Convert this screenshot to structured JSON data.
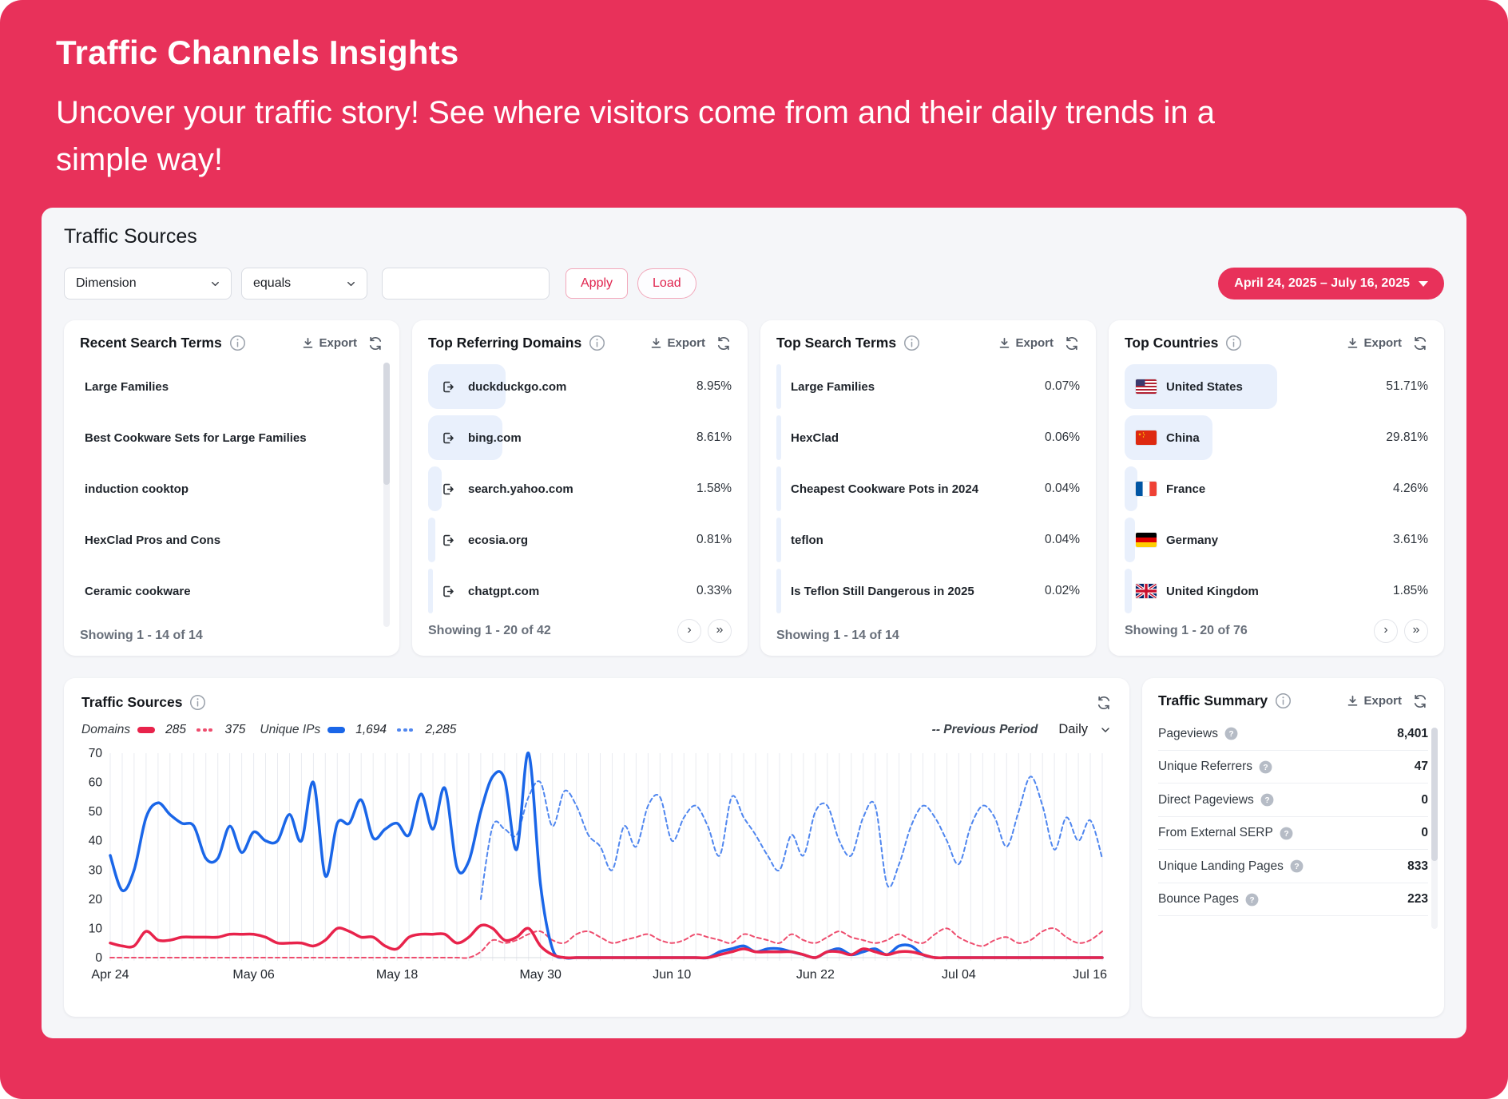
{
  "page": {
    "title": "Traffic Channels Insights",
    "subtitle": "Uncover your traffic story! See where visitors come from and their daily trends in a simple way!"
  },
  "card": {
    "title": "Traffic Sources"
  },
  "filters": {
    "dimension": "Dimension",
    "operator": "equals",
    "value": "",
    "apply": "Apply",
    "load": "Load",
    "date_range": "April 24, 2025 – July 16, 2025"
  },
  "panels": {
    "recent_search_terms": {
      "title": "Recent Search Terms",
      "export_label": "Export",
      "items": [
        "Large Families",
        "Best Cookware Sets for Large Families",
        "induction cooktop",
        "HexClad Pros and Cons",
        "Ceramic cookware"
      ],
      "footer": "Showing 1 - 14 of 14"
    },
    "top_referring_domains": {
      "title": "Top Referring Domains",
      "export_label": "Export",
      "items": [
        {
          "name": "duckduckgo.com",
          "pct": 8.95,
          "pct_label": "8.95%"
        },
        {
          "name": "bing.com",
          "pct": 8.61,
          "pct_label": "8.61%"
        },
        {
          "name": "search.yahoo.com",
          "pct": 1.58,
          "pct_label": "1.58%"
        },
        {
          "name": "ecosia.org",
          "pct": 0.81,
          "pct_label": "0.81%"
        },
        {
          "name": "chatgpt.com",
          "pct": 0.33,
          "pct_label": "0.33%"
        }
      ],
      "footer": "Showing 1 - 20 of 42",
      "pager_next": "›",
      "pager_last": "»"
    },
    "top_search_terms": {
      "title": "Top Search Terms",
      "export_label": "Export",
      "items": [
        {
          "name": "Large Families",
          "pct": 0.07,
          "pct_label": "0.07%"
        },
        {
          "name": "HexClad",
          "pct": 0.06,
          "pct_label": "0.06%"
        },
        {
          "name": "Cheapest Cookware Pots in 2024",
          "pct": 0.04,
          "pct_label": "0.04%"
        },
        {
          "name": "teflon",
          "pct": 0.04,
          "pct_label": "0.04%"
        },
        {
          "name": "Is Teflon Still Dangerous in 2025",
          "pct": 0.02,
          "pct_label": "0.02%"
        }
      ],
      "footer": "Showing 1 - 14 of 14"
    },
    "top_countries": {
      "title": "Top Countries",
      "export_label": "Export",
      "items": [
        {
          "name": "United States",
          "code": "us",
          "pct": 51.71,
          "pct_label": "51.71%"
        },
        {
          "name": "China",
          "code": "cn",
          "pct": 29.81,
          "pct_label": "29.81%"
        },
        {
          "name": "France",
          "code": "fr",
          "pct": 4.26,
          "pct_label": "4.26%"
        },
        {
          "name": "Germany",
          "code": "de",
          "pct": 3.61,
          "pct_label": "3.61%"
        },
        {
          "name": "United Kingdom",
          "code": "gb",
          "pct": 1.85,
          "pct_label": "1.85%"
        }
      ],
      "footer": "Showing 1 - 20 of 76",
      "pager_next": "›",
      "pager_last": "»"
    }
  },
  "chart_panel": {
    "title": "Traffic Sources",
    "legend": {
      "domains_label": "Domains",
      "domains_current": "285",
      "domains_previous": "375",
      "unique_ips_label": "Unique IPs",
      "unique_ips_current": "1,694",
      "unique_ips_previous": "2,285"
    },
    "previous_period_label": "-- Previous Period",
    "interval": "Daily"
  },
  "chart_data": {
    "type": "line",
    "title": "Traffic Sources",
    "xlabel": "",
    "ylabel": "",
    "ylim": [
      0,
      70
    ],
    "y_ticks": [
      0,
      10,
      20,
      30,
      40,
      50,
      60,
      70
    ],
    "grid": "vertical-daily-gridlines",
    "legend_position": "top-left",
    "days": 84,
    "x_ticks": [
      {
        "i": 0,
        "label": "Apr 24"
      },
      {
        "i": 12,
        "label": "May 06"
      },
      {
        "i": 24,
        "label": "May 18"
      },
      {
        "i": 36,
        "label": "May 30"
      },
      {
        "i": 47,
        "label": "Jun 10"
      },
      {
        "i": 59,
        "label": "Jun 22"
      },
      {
        "i": 71,
        "label": "Jul 04"
      },
      {
        "i": 83,
        "label": "Jul 16"
      }
    ],
    "series": [
      {
        "name": "Unique IPs (previous period)",
        "total_label": "2,285",
        "color": "#4f86ef",
        "style": "dashed",
        "width": 2,
        "values": [
          null,
          null,
          null,
          null,
          null,
          null,
          null,
          null,
          null,
          null,
          null,
          null,
          null,
          null,
          null,
          null,
          null,
          null,
          null,
          null,
          null,
          null,
          null,
          null,
          null,
          null,
          null,
          null,
          null,
          null,
          null,
          20,
          45,
          44,
          42,
          55,
          60,
          45,
          57,
          52,
          42,
          38,
          30,
          45,
          38,
          52,
          55,
          40,
          48,
          52,
          45,
          35,
          55,
          48,
          42,
          35,
          30,
          42,
          35,
          50,
          52,
          40,
          35,
          48,
          52,
          25,
          32,
          45,
          52,
          48,
          40,
          32,
          45,
          52,
          48,
          38,
          50,
          62,
          52,
          37,
          48,
          40,
          47,
          34
        ]
      },
      {
        "name": "Domains (previous period)",
        "total_label": "375",
        "color": "#ee4d6e",
        "style": "dashed",
        "width": 2,
        "values": [
          0,
          0,
          0,
          0,
          0,
          0,
          0,
          0,
          0,
          0,
          0,
          0,
          0,
          0,
          0,
          0,
          0,
          0,
          0,
          0,
          0,
          0,
          0,
          0,
          0,
          0,
          0,
          0,
          0,
          0,
          0,
          2,
          6,
          5,
          6,
          8,
          9,
          6,
          5,
          8,
          9,
          7,
          5,
          6,
          7,
          8,
          6,
          5,
          6,
          8,
          7,
          6,
          5,
          8,
          7,
          6,
          5,
          8,
          6,
          5,
          7,
          9,
          7,
          6,
          5,
          6,
          8,
          6,
          5,
          8,
          10,
          7,
          5,
          4,
          6,
          7,
          5,
          6,
          9,
          10,
          7,
          5,
          6,
          9
        ]
      },
      {
        "name": "Unique IPs",
        "total_label": "1,694",
        "color": "#1a66e8",
        "style": "solid",
        "width": 3.5,
        "values": [
          35,
          23,
          30,
          48,
          53,
          49,
          46,
          45,
          34,
          34,
          45,
          36,
          43,
          40,
          40,
          49,
          40,
          60,
          28,
          46,
          46,
          54,
          41,
          44,
          46,
          42,
          56,
          44,
          58,
          31,
          33,
          50,
          62,
          61,
          37,
          70,
          25,
          3,
          0,
          0,
          0,
          0,
          0,
          0,
          0,
          0,
          0,
          0,
          0,
          0,
          0,
          2,
          3,
          4,
          2,
          3,
          3,
          2,
          1,
          0,
          2,
          3,
          1,
          2,
          3,
          1,
          4,
          4,
          1,
          0,
          0,
          0,
          0,
          0,
          0,
          0,
          0,
          0,
          0,
          0,
          0,
          0,
          0,
          0
        ]
      },
      {
        "name": "Domains",
        "total_label": "285",
        "color": "#e8234b",
        "style": "solid",
        "width": 3.5,
        "values": [
          5,
          4,
          4,
          9,
          6,
          6,
          7,
          7,
          7,
          7,
          8,
          8,
          8,
          7,
          5,
          5,
          5,
          4,
          6,
          10,
          9,
          7,
          7,
          4,
          3,
          7,
          8,
          8,
          8,
          5,
          7,
          11,
          10,
          6,
          7,
          10,
          4,
          1,
          0,
          0,
          0,
          0,
          0,
          0,
          0,
          0,
          0,
          0,
          0,
          0,
          0,
          1,
          2,
          3,
          2,
          2,
          2,
          2,
          1,
          0,
          2,
          2,
          1,
          3,
          2,
          1,
          2,
          2,
          1,
          0,
          0,
          0,
          0,
          0,
          0,
          0,
          0,
          0,
          0,
          0,
          0,
          0,
          0,
          0
        ]
      }
    ]
  },
  "traffic_summary": {
    "title": "Traffic Summary",
    "export_label": "Export",
    "rows": [
      {
        "label": "Pageviews",
        "value": "8,401"
      },
      {
        "label": "Unique Referrers",
        "value": "47"
      },
      {
        "label": "Direct Pageviews",
        "value": "0"
      },
      {
        "label": "From External SERP",
        "value": "0"
      },
      {
        "label": "Unique Landing Pages",
        "value": "833"
      },
      {
        "label": "Bounce Pages",
        "value": "223"
      }
    ]
  },
  "colors": {
    "background": "#E8315A",
    "card": "#f5f6f9",
    "accent_red": "#e0244e",
    "bar_highlight": "#e9f0fc",
    "line_blue": "#1a66e8",
    "line_blue_prev": "#4f86ef",
    "line_red": "#e8234b",
    "line_red_prev": "#ee4d6e"
  }
}
